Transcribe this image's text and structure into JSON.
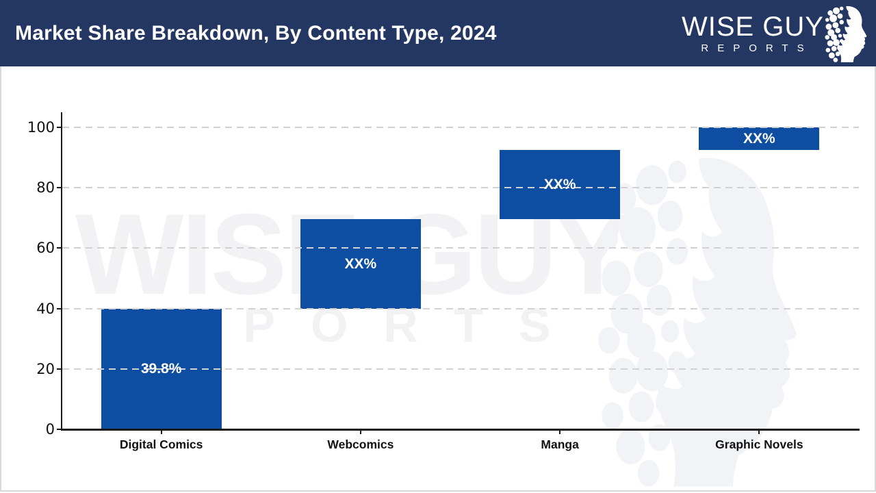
{
  "header": {
    "title": "Market Share Breakdown, By Content Type, 2024",
    "brand": {
      "word": "WISE GUY",
      "sub": "REPORTS"
    }
  },
  "watermark": {
    "line1": "WISE GUY",
    "line2": "REPORTS"
  },
  "chart_data": {
    "type": "bar",
    "subtype": "waterfall",
    "title": "Market Share Breakdown, By Content Type, 2024",
    "categories": [
      "Digital Comics",
      "Webcomics",
      "Manga",
      "Graphic Novels"
    ],
    "bars": [
      {
        "category": "Digital Comics",
        "start": 0,
        "end": 39.8,
        "label": "39.8%"
      },
      {
        "category": "Webcomics",
        "start": 39.8,
        "end": 69.6,
        "label": "XX%"
      },
      {
        "category": "Manga",
        "start": 69.6,
        "end": 92.5,
        "label": "XX%"
      },
      {
        "category": "Graphic Novels",
        "start": 92.5,
        "end": 100,
        "label": "XX%"
      }
    ],
    "bar_color": "#0d4ea3",
    "yticks": [
      0,
      20,
      40,
      60,
      80,
      100
    ],
    "ylim": [
      0,
      105
    ],
    "xlabel": "",
    "ylabel": "",
    "grid": "horizontal dashed, drawn over bars",
    "legend": "none"
  }
}
